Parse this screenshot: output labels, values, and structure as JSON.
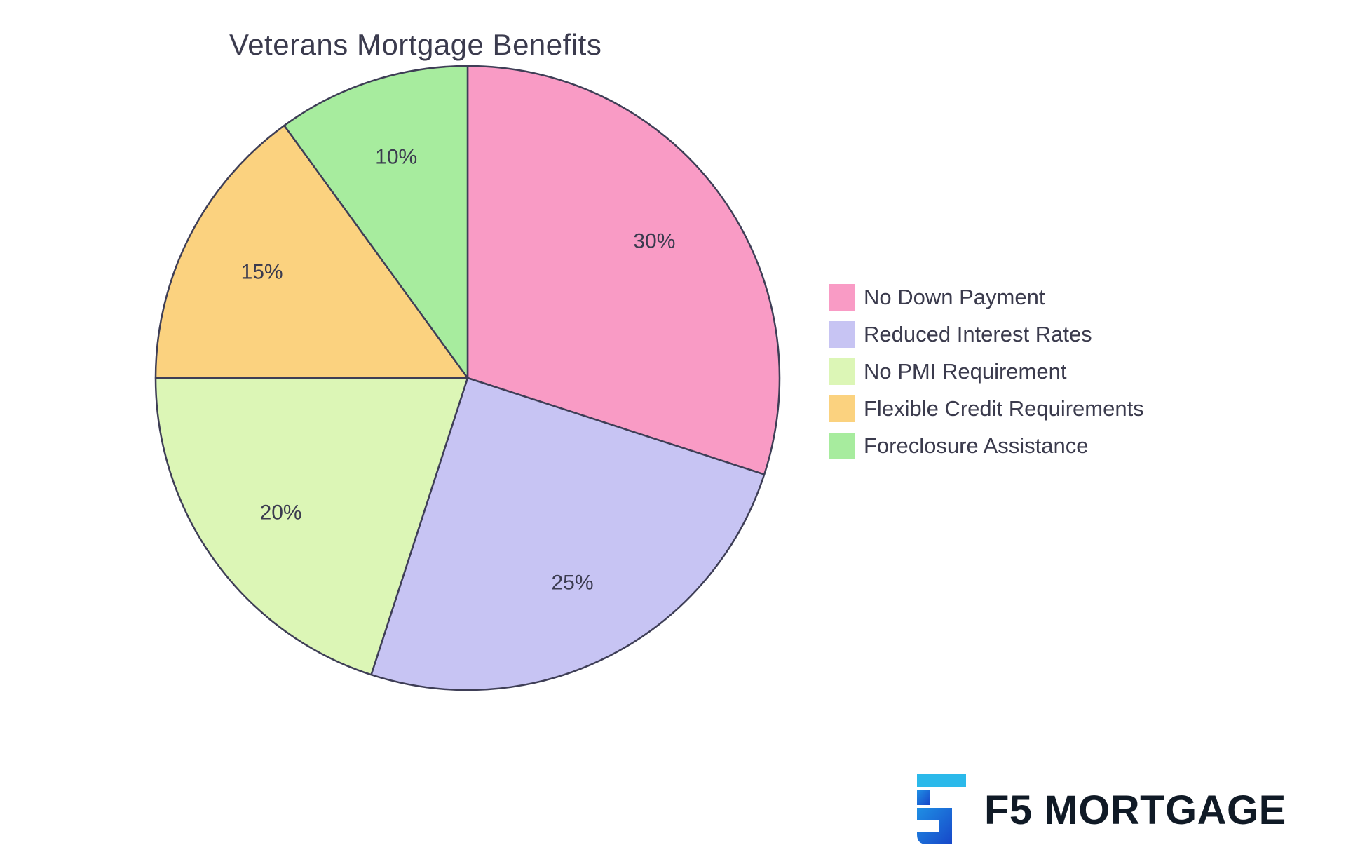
{
  "title": "Veterans Mortgage Benefits",
  "chart_data": {
    "type": "pie",
    "title": "Veterans Mortgage Benefits",
    "start_angle_deg": 0,
    "direction": "clockwise",
    "slices": [
      {
        "label": "No Down Payment",
        "value": 30,
        "pct_label": "30%",
        "color": "#F99BC5"
      },
      {
        "label": "Reduced Interest Rates",
        "value": 25,
        "pct_label": "25%",
        "color": "#C7C4F3"
      },
      {
        "label": "No PMI Requirement",
        "value": 20,
        "pct_label": "20%",
        "color": "#DCF6B6"
      },
      {
        "label": "Flexible Credit Requirements",
        "value": 15,
        "pct_label": "15%",
        "color": "#FBD27F"
      },
      {
        "label": "Foreclosure Assistance",
        "value": 10,
        "pct_label": "10%",
        "color": "#A7EC9E"
      }
    ],
    "stroke_color": "#3E3E56",
    "label_color": "#3B3B4F",
    "legend_position": "right",
    "legend_labels": [
      "No Down Payment",
      "Reduced Interest Rates",
      "No PMI Requirement",
      "Flexible Credit Requirements",
      "Foreclosure Assistance"
    ]
  },
  "branding": {
    "logo_text": "F5 MORTGAGE",
    "logo_colors": {
      "cyan": "#2BB9EA",
      "blue_top": "#1F8FE4",
      "blue_bottom": "#1747C9"
    }
  }
}
